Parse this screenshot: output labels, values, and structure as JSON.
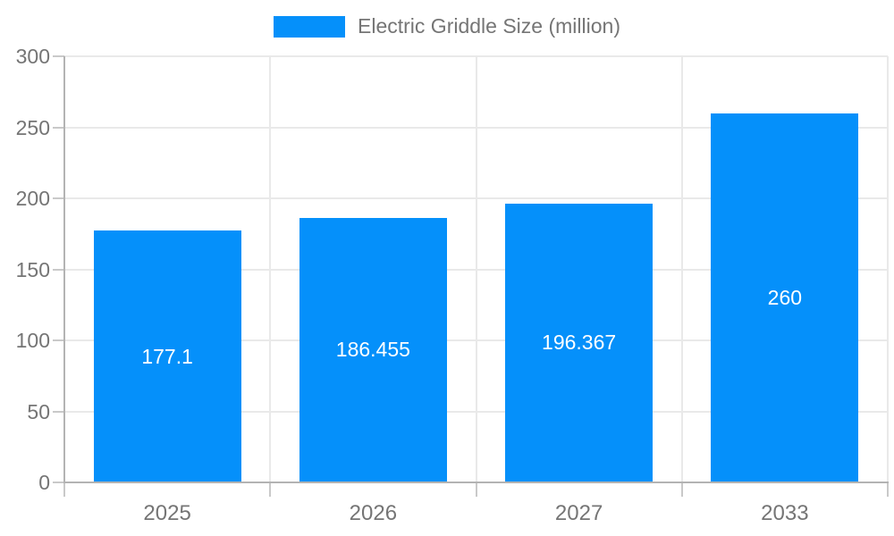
{
  "chart_data": {
    "type": "bar",
    "title": "",
    "legend": {
      "label": "Electric Griddle Size (million)",
      "position": "top-center",
      "swatch_color": "#0590fa"
    },
    "categories": [
      "2025",
      "2026",
      "2027",
      "2033"
    ],
    "series": [
      {
        "name": "Electric Griddle Size (million)",
        "color": "#0590fa",
        "values": [
          177.1,
          186.455,
          196.367,
          260
        ]
      }
    ],
    "bar_value_labels": [
      "177.1",
      "186.455",
      "196.367",
      "260"
    ],
    "xlabel": "",
    "ylabel": "",
    "ylim": [
      0,
      300
    ],
    "ytick_labels": [
      "0",
      "50",
      "100",
      "150",
      "200",
      "250",
      "300"
    ],
    "grid": {
      "horizontal": true,
      "vertical": true,
      "color": "#e9e9e9"
    },
    "colors": {
      "axis_line": "#b3b3b3",
      "tick": "#c9c9c9",
      "axis_text": "#757575",
      "value_label": "#ffffff",
      "background": "#ffffff"
    }
  }
}
